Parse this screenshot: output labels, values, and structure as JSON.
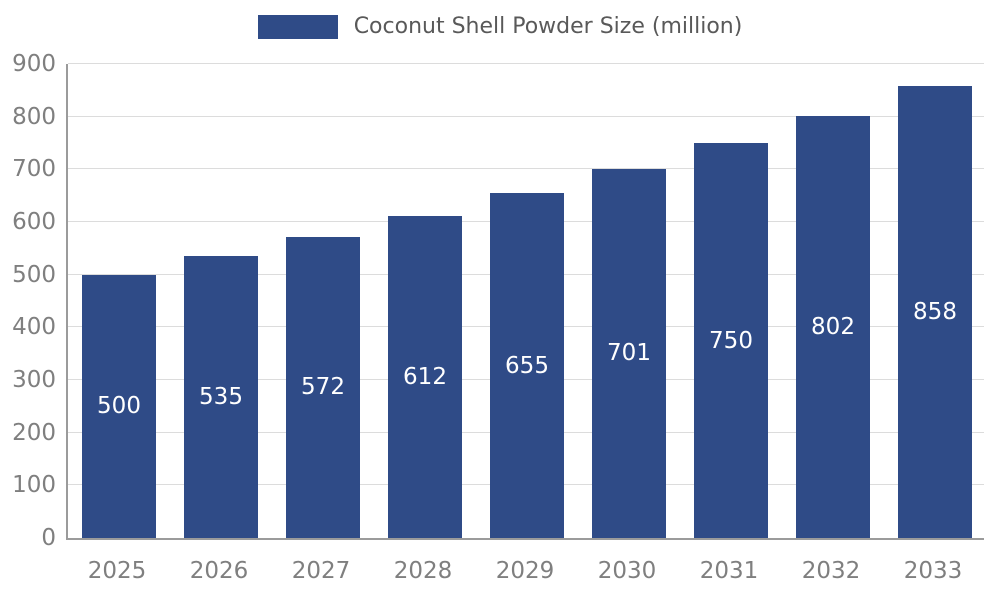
{
  "chart_data": {
    "type": "bar",
    "title": "Coconut Shell Powder Size (million)",
    "categories": [
      "2025",
      "2026",
      "2027",
      "2028",
      "2029",
      "2030",
      "2031",
      "2032",
      "2033"
    ],
    "values": [
      500,
      535,
      572,
      612,
      655,
      701,
      750,
      802,
      858
    ],
    "xlabel": "",
    "ylabel": "",
    "ylim": [
      0,
      900
    ],
    "ytick_step": 100,
    "grid": true,
    "legend_position": "top-center",
    "bar_color": "#2F4B87",
    "value_label_color": "#ffffff",
    "value_label_position": "middle-of-bar",
    "axis_color": "#9b9b9b",
    "gridline_color": "#dcdcdc",
    "tick_label_color": "#7f7f7f",
    "legend_text_color": "#595959"
  }
}
